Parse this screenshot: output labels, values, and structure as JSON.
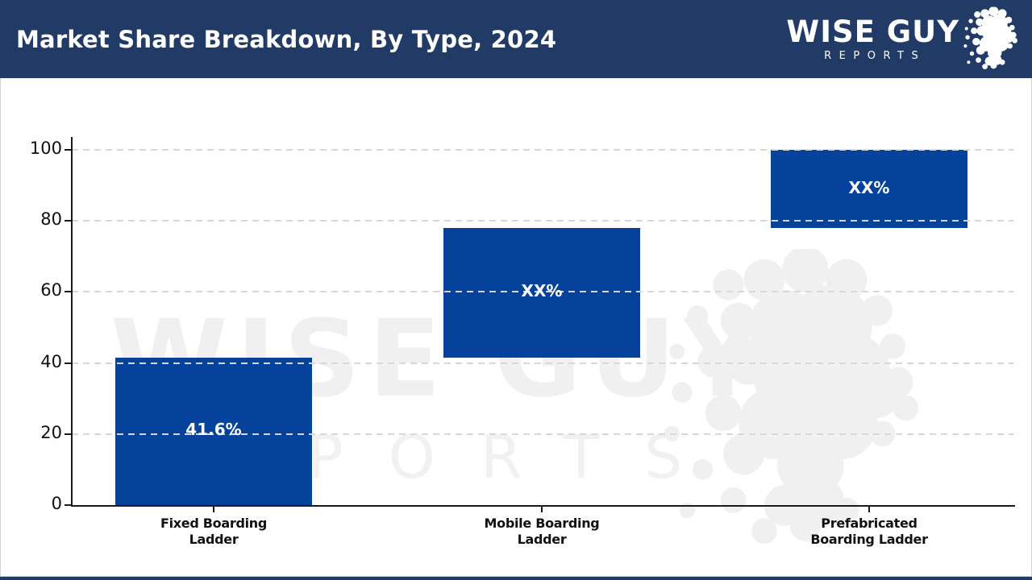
{
  "header": {
    "title": "Market Share Breakdown, By Type, 2024",
    "logo": {
      "line1": "WISE GUY",
      "line2": "REPORTS"
    },
    "colors": {
      "header_bg": "#213a66",
      "title_text": "#ffffff"
    }
  },
  "watermark": {
    "line1": "WISE GUY",
    "line2": "REPORTS"
  },
  "chart_data": {
    "type": "bar",
    "variant": "stacked-waterfall",
    "title": "Market Share Breakdown, By Type, 2024",
    "categories": [
      "Fixed Boarding Ladder",
      "Mobile Boarding Ladder",
      "Prefabricated Boarding Ladder"
    ],
    "category_lines": [
      [
        "Fixed Boarding",
        "Ladder"
      ],
      [
        "Mobile Boarding",
        "Ladder"
      ],
      [
        "Prefabricated",
        "Boarding Ladder"
      ]
    ],
    "segments": [
      {
        "category": "Fixed Boarding Ladder",
        "start": 0,
        "end": 41.6,
        "label": "41.6%"
      },
      {
        "category": "Mobile Boarding Ladder",
        "start": 41.6,
        "end": 78,
        "label": "XX%"
      },
      {
        "category": "Prefabricated Boarding Ladder",
        "start": 78,
        "end": 100,
        "label": "XX%"
      }
    ],
    "values": [
      41.6,
      36.4,
      22
    ],
    "bar_labels": [
      "41.6%",
      "XX%",
      "XX%"
    ],
    "xlabel": "",
    "ylabel": "",
    "ylim": [
      0,
      100
    ],
    "yticks": [
      0,
      20,
      40,
      60,
      80,
      100
    ],
    "grid": true,
    "grid_style": "dashed",
    "legend": false,
    "bar_color": "#05429c",
    "bar_label_color": "#ffffff",
    "axis_color": "#1a1a1a"
  }
}
